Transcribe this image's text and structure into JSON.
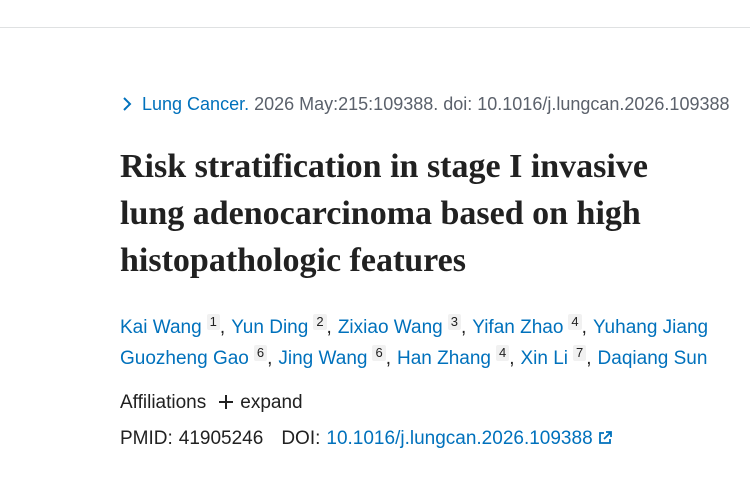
{
  "citation": {
    "journal": "Lung Cancer.",
    "details": "2026 May:215:109388. doi: 10.1016/j.lungcan.2026.109388"
  },
  "title": {
    "lines": [
      "Risk stratification in stage I invasive",
      "lung adenocarcinoma based on high",
      "histopathologic features"
    ]
  },
  "authors": {
    "lines": [
      [
        {
          "name": "Kai Wang",
          "sup": "1"
        },
        {
          "name": "Yun Ding",
          "sup": "2"
        },
        {
          "name": "Zixiao Wang",
          "sup": "3"
        },
        {
          "name": "Yifan Zhao",
          "sup": "4"
        },
        {
          "name": "Yuhang Jiang"
        }
      ],
      [
        {
          "name": "Guozheng Gao",
          "sup": "6"
        },
        {
          "name": "Jing Wang",
          "sup": "6"
        },
        {
          "name": "Han Zhang",
          "sup": "4"
        },
        {
          "name": "Xin Li",
          "sup": "7"
        },
        {
          "name": "Daqiang Sun"
        }
      ]
    ]
  },
  "affiliations": {
    "label": "Affiliations",
    "toggle": "expand"
  },
  "identifiers": {
    "pmid_label": "PMID:",
    "pmid": "41905246",
    "doi_label": "DOI:",
    "doi": "10.1016/j.lungcan.2026.109388"
  }
}
